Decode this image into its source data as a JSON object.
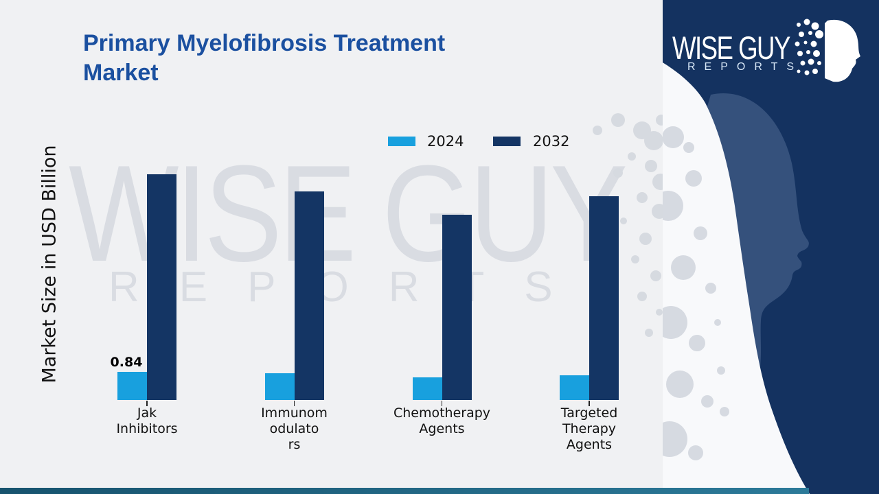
{
  "title": "Primary Myelofibrosis Treatment Market",
  "y_axis_label": "Market Size in USD Billion",
  "colors": {
    "series_2024": "#18a0de",
    "series_2032": "#143564",
    "title": "#1b50a0",
    "panel": "#143260",
    "watermark": "#d9dce2",
    "strip_left": "#17536e",
    "strip_right": "#2c7a99"
  },
  "legend": {
    "series1": "2024",
    "series2": "2032"
  },
  "logo": {
    "line1": "WISE GUY",
    "line2": "REPORTS"
  },
  "watermark": {
    "line1": "WISE GUY",
    "line2": "REPORTS"
  },
  "chart_data": {
    "type": "bar",
    "categories": [
      "Jak Inhibitors",
      "Immunomodulators",
      "Chemotherapy Agents",
      "Targeted Therapy Agents"
    ],
    "categories_wrapped": [
      "Jak\nInhibitors",
      "Immunom\nodulato\nrs",
      "Chemotherapy\nAgents",
      "Targeted\nTherapy\nAgents"
    ],
    "series": [
      {
        "name": "2024",
        "color": "#18a0de",
        "values": [
          0.84,
          0.8,
          0.68,
          0.74
        ]
      },
      {
        "name": "2032",
        "color": "#143564",
        "values": [
          6.74,
          6.23,
          5.53,
          6.08
        ]
      }
    ],
    "data_labels": [
      "0.84",
      null,
      null,
      null
    ],
    "xlabel": "",
    "ylabel": "Market Size in USD Billion",
    "ylim": [
      0,
      7.0
    ],
    "grid": false,
    "legend_position": "top-center"
  }
}
